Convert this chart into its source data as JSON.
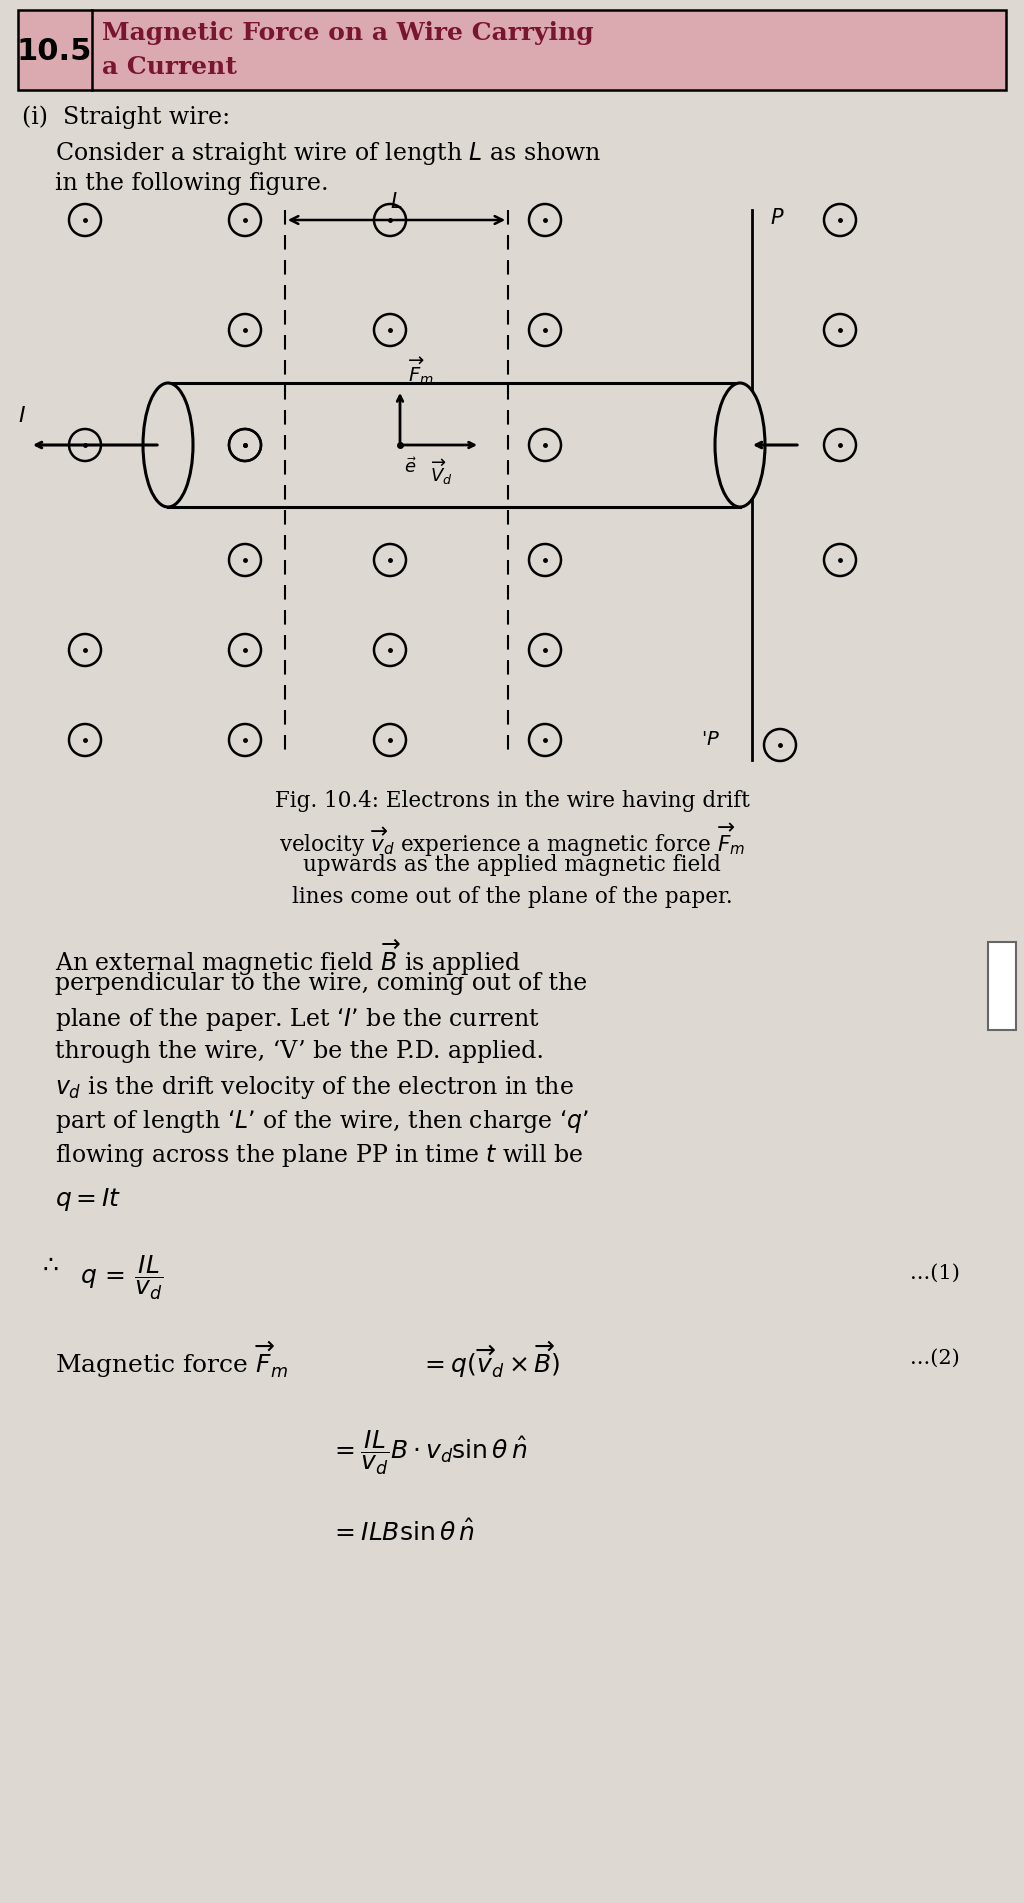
{
  "page_bg": "#ddd8d2",
  "title_bg": "#dbaab0",
  "title_number": "10.5",
  "title_text_line1": "Magnetic Force on a Wire Carrying",
  "title_text_line2": "a Current",
  "section_i": "(i)  Straight wire:",
  "para1_line1": "Consider a straight wire of length $L$ as shown",
  "para1_line2": "in the following figure.",
  "cap_line1": "Fig. 10.4: Electrons in the wire having drift",
  "cap_line2": "velocity $\\overrightarrow{v}_d$ experience a magnetic force $\\overrightarrow{F}_m$",
  "cap_line3": "upwards as the applied magnetic field",
  "cap_line4": "lines come out of the plane of the paper.",
  "para2_lines": [
    "An external magnetic field $\\overrightarrow{B}$ is applied",
    "perpendicular to the wire, coming out of the",
    "plane of the paper. Let ‘$I$’ be the current",
    "through the wire, ‘V’ be the P.D. applied.",
    "$v_d$ is the drift velocity of the electron in the",
    "part of length ‘$L$’ of the wire, then charge ‘$q$’",
    "flowing across the plane PP in time $t$ will be"
  ],
  "eq0": "$q = It$",
  "eq1_therefore": "$\\therefore$",
  "eq1": "$q\\, =\\, \\dfrac{IL}{v_d}$",
  "eq1_num": "...(1)",
  "eq2_lhs": "Magnetic force $\\overrightarrow{F}_m$",
  "eq2_rhs": "$= q(\\overrightarrow{v}_d \\times \\overrightarrow{B})$",
  "eq2_num": "...(2)",
  "eq3": "$= \\dfrac{IL}{v_d}B \\cdot v_d\\sin\\theta\\,\\hat{n}$",
  "eq4": "$= ILB\\sin\\theta\\,\\hat{n}$"
}
